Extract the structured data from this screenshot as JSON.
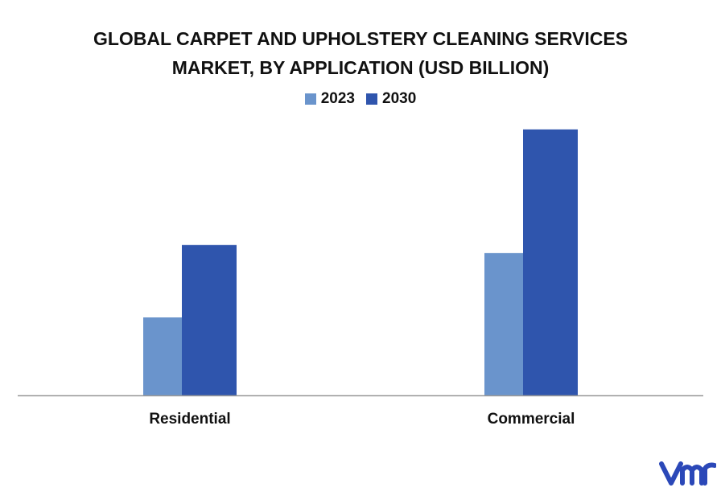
{
  "chart_data": {
    "type": "bar",
    "title": "GLOBAL CARPET AND UPHOLSTERY CLEANING SERVICES MARKET, BY APPLICATION (USD BILLION)",
    "title_lines": [
      "GLOBAL CARPET AND UPHOLSTERY CLEANING SERVICES",
      "MARKET, BY APPLICATION (USD BILLION)"
    ],
    "categories": [
      "Residential",
      "Commercial"
    ],
    "series": [
      {
        "name": "2023",
        "color": "#6a94cc",
        "values": [
          2.9,
          5.3
        ]
      },
      {
        "name": "2030",
        "color": "#2f55ad",
        "values": [
          5.6,
          9.9
        ]
      }
    ],
    "xlabel": "",
    "ylabel": "",
    "ylim": [
      0,
      10.7
    ],
    "grid": false,
    "legend_position": "top-center",
    "axis_color": "#999999"
  },
  "logo": {
    "icon": "vmr-logo-icon",
    "color": "#2b48b8"
  }
}
